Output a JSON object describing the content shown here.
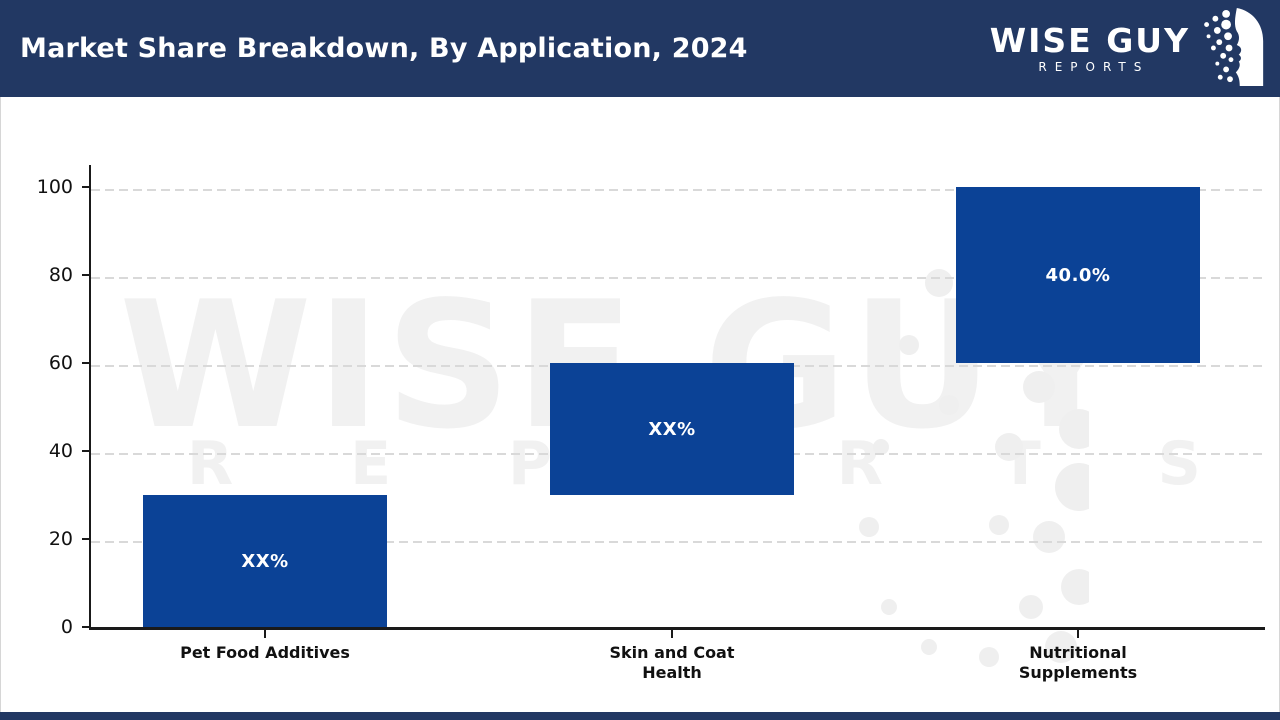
{
  "header": {
    "title": "Market Share Breakdown, By Application, 2024",
    "logo": {
      "line1": "WISE GUY",
      "line2": "REPORTS"
    }
  },
  "watermark": {
    "line1": "WISE GUY",
    "line2": "R E P O R T S"
  },
  "colors": {
    "header_bg": "#223863",
    "bar": "#0b4296",
    "gridline": "#d9d9d9",
    "axis": "#1a1a1a",
    "bar_label": "#ffffff",
    "watermark": "#f1f1f1"
  },
  "chart_data": {
    "type": "bar",
    "subtype": "floating-segment-bars",
    "title": "Market Share Breakdown, By Application, 2024",
    "categories": [
      "Pet Food Additives",
      "Skin and Coat Health",
      "Nutritional Supplements"
    ],
    "category_lines": [
      [
        "Pet Food Additives"
      ],
      [
        "Skin and Coat",
        "Health"
      ],
      [
        "Nutritional",
        "Supplements"
      ]
    ],
    "series": [
      {
        "name": "Market Share (%)",
        "segments": [
          {
            "category": "Pet Food Additives",
            "start": 0,
            "end": 30,
            "label": "XX%"
          },
          {
            "category": "Skin and Coat Health",
            "start": 30,
            "end": 60,
            "label": "XX%"
          },
          {
            "category": "Nutritional Supplements",
            "start": 60,
            "end": 100,
            "label": "40.0%"
          }
        ]
      }
    ],
    "xlabel": "",
    "ylabel": "",
    "ylim": [
      0,
      100
    ],
    "yticks": [
      0,
      20,
      40,
      60,
      80,
      100
    ],
    "grid": "horizontal-dashed",
    "legend": "none"
  }
}
